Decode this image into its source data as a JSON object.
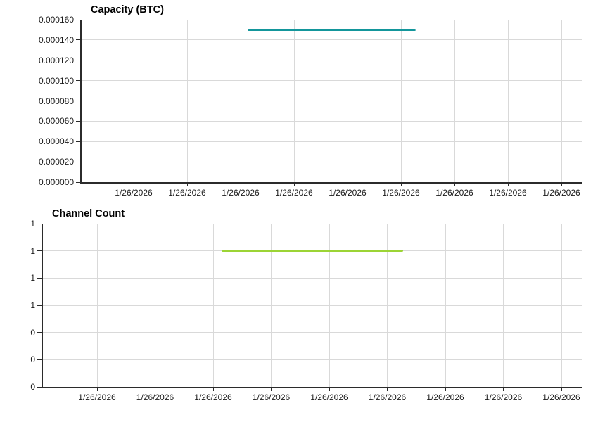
{
  "background": "#ffffff",
  "palette": {
    "grid": "#d9d9d9",
    "axis": "#2b2b2b",
    "tick_text": "#1a1a1a",
    "title_text": "#000000"
  },
  "chart_data": [
    {
      "type": "line",
      "title": "Capacity (BTC)",
      "xlabel": "",
      "ylabel": "",
      "grid": true,
      "legend": false,
      "ylim": [
        0,
        0.00016
      ],
      "y_tick_values": [
        0.00016,
        0.00014,
        0.00012,
        0.0001,
        8e-05,
        6e-05,
        4e-05,
        2e-05,
        0
      ],
      "y_tick_labels": [
        "0.000160",
        "0.000140",
        "0.000120",
        "0.000100",
        "0.000080",
        "0.000060",
        "0.000040",
        "0.000020",
        "0.000000"
      ],
      "x_tick_labels": [
        "1/26/2026",
        "1/26/2026",
        "1/26/2026",
        "1/26/2026",
        "1/26/2026",
        "1/26/2026",
        "1/26/2026",
        "1/26/2026",
        "1/26/2026"
      ],
      "series": [
        {
          "name": "Capacity (BTC)",
          "color": "#13969b",
          "value": 0.00015,
          "x_start_label": "1/26/2026",
          "x_end_label": "1/26/2026",
          "x_span_fraction": [
            0.333,
            0.669
          ]
        }
      ]
    },
    {
      "type": "line",
      "title": "Channel Count",
      "xlabel": "",
      "ylabel": "",
      "grid": true,
      "legend": false,
      "ylim": [
        0,
        1.2
      ],
      "y_tick_values": [
        1.2,
        1.0,
        0.8,
        0.6,
        0.4,
        0.2,
        0
      ],
      "y_tick_labels": [
        "1",
        "1",
        "1",
        "1",
        "0",
        "0",
        "0"
      ],
      "x_tick_labels": [
        "1/26/2026",
        "1/26/2026",
        "1/26/2026",
        "1/26/2026",
        "1/26/2026",
        "1/26/2026",
        "1/26/2026",
        "1/26/2026",
        "1/26/2026"
      ],
      "series": [
        {
          "name": "Channel Count",
          "color": "#9cd435",
          "value": 1,
          "x_start_label": "1/26/2026",
          "x_end_label": "1/26/2026",
          "x_span_fraction": [
            0.333,
            0.669
          ]
        }
      ]
    }
  ]
}
